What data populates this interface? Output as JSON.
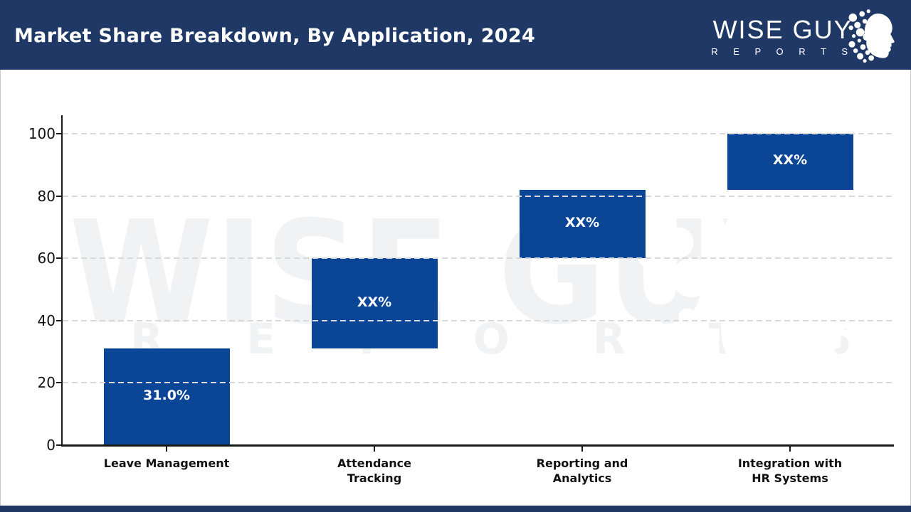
{
  "header": {
    "title": "Market Share Breakdown, By Application, 2024",
    "logo": {
      "line1": "WISE GUY",
      "line2": "R E P O R T S"
    }
  },
  "watermark": {
    "line1": "WISE GUY",
    "line2": "R E P O R T S"
  },
  "chart_data": {
    "type": "bar",
    "subtype": "waterfall",
    "title": "Market Share Breakdown, By Application, 2024",
    "categories": [
      "Leave Management",
      "Attendance Tracking",
      "Reporting and Analytics",
      "Integration with HR Systems"
    ],
    "category_lines": [
      [
        "Leave Management"
      ],
      [
        "Attendance",
        "Tracking"
      ],
      [
        "Reporting and",
        "Analytics"
      ],
      [
        "Integration with",
        "HR Systems"
      ]
    ],
    "segments": [
      {
        "category": "Leave Management",
        "start": 0,
        "end": 31,
        "value": 31,
        "label": "31.0%"
      },
      {
        "category": "Attendance Tracking",
        "start": 31,
        "end": 60,
        "value": 29,
        "label": "XX%"
      },
      {
        "category": "Reporting and Analytics",
        "start": 60,
        "end": 82,
        "value": 22,
        "label": "XX%"
      },
      {
        "category": "Integration with HR Systems",
        "start": 82,
        "end": 100,
        "value": 18,
        "label": "XX%"
      }
    ],
    "xlabel": "",
    "ylabel": "",
    "ylim": [
      0,
      100
    ],
    "yticks": [
      0,
      20,
      40,
      60,
      80,
      100
    ],
    "grid": "horizontal-dashed",
    "legend": "none"
  },
  "theme": {
    "header_bg": "#1f3866",
    "footer_bg": "#1f3866",
    "bar_color": "#0b4596",
    "bar_label_color": "#ffffff",
    "grid_color": "#d9d9d9",
    "axis_color": "#1a1a1a",
    "watermark_color": "#f1f2f4",
    "text_color": "#111111"
  }
}
